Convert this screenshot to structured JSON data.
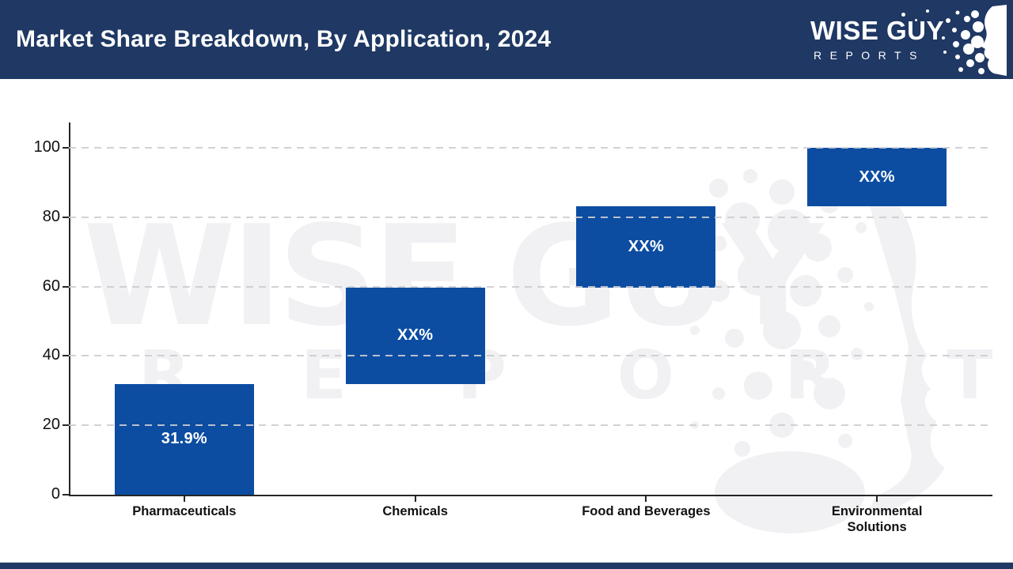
{
  "header": {
    "title": "Market Share Breakdown, By Application, 2024",
    "logo": {
      "line1": "WISE GUY",
      "line2": "REPORTS"
    }
  },
  "watermark": {
    "line1": "WISE GUY",
    "line2": "R E P O R T S"
  },
  "colors": {
    "header_bg": "#1f3864",
    "bar": "#0c4da2",
    "grid": "#d2d2d4",
    "axis": "#262626",
    "bar_label_text": "#ffffff",
    "watermark": "#f1f1f4"
  },
  "chart_data": {
    "type": "bar",
    "subtype": "waterfall",
    "title": "Market Share Breakdown, By Application, 2024",
    "categories": [
      "Pharmaceuticals",
      "Chemicals",
      "Food and Beverages",
      "Environmental Solutions"
    ],
    "segments": [
      {
        "category": "Pharmaceuticals",
        "category_lines": [
          "Pharmaceuticals"
        ],
        "start": 0,
        "end": 31.9,
        "label": "31.9%"
      },
      {
        "category": "Chemicals",
        "category_lines": [
          "Chemicals"
        ],
        "start": 31.9,
        "end": 59.7,
        "label": "XX%"
      },
      {
        "category": "Food and Beverages",
        "category_lines": [
          "Food and Beverages"
        ],
        "start": 59.7,
        "end": 83.1,
        "label": "XX%"
      },
      {
        "category": "Environmental Solutions",
        "category_lines": [
          "Environmental",
          "Solutions"
        ],
        "start": 83.1,
        "end": 100,
        "label": "XX%"
      }
    ],
    "xlabel": "",
    "ylabel": "",
    "ylim": [
      0,
      100
    ],
    "yticks": [
      0,
      20,
      40,
      60,
      80,
      100
    ],
    "grid": "horizontal-dashed-above-bars",
    "legend": "none"
  }
}
